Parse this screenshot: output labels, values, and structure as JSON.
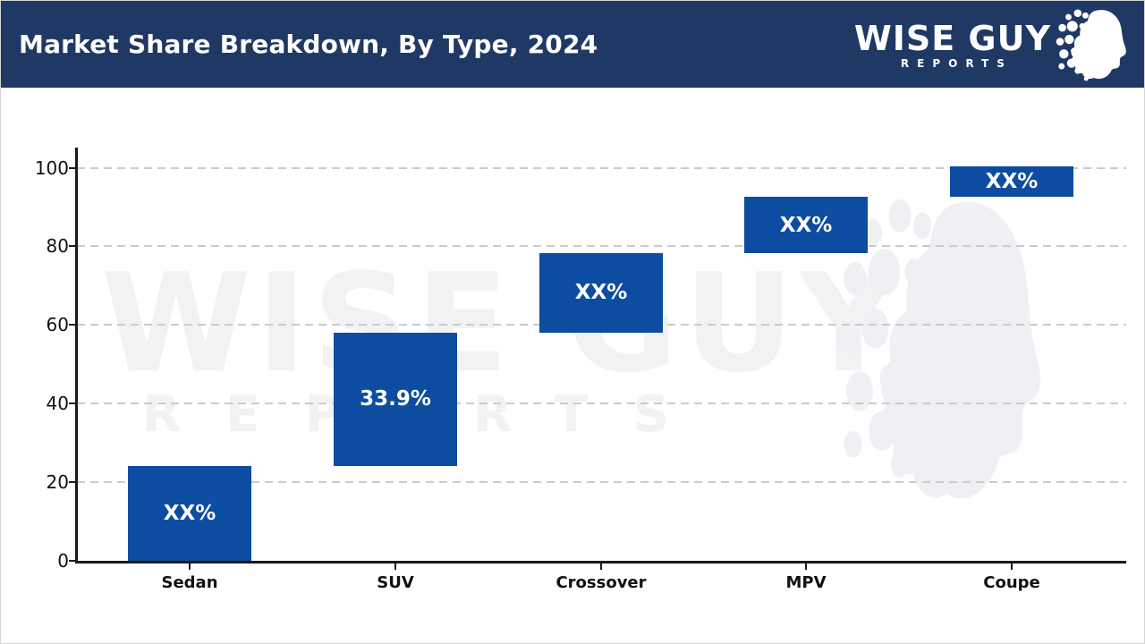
{
  "header": {
    "title": "Market Share Breakdown, By Type, 2024",
    "logo": {
      "line1": "WISE GUY",
      "line2": "REPORTS"
    }
  },
  "watermark": {
    "line1": "WISE GUY",
    "line2": "REPORTS"
  },
  "colors": {
    "header_bg": "#203864",
    "bar": "#0d4da1",
    "grid": "#cbcbcb",
    "axis": "#1a1a1a",
    "tick_label": "#111111",
    "bar_label": "#ffffff",
    "watermark": "#f2f2f4",
    "watermark_face": "#eef0f3"
  },
  "chart_data": {
    "type": "bar",
    "subtype": "floating-waterfall",
    "title": "Market Share Breakdown, By Type, 2024",
    "categories": [
      "Sedan",
      "SUV",
      "Crossover",
      "MPV",
      "Coupe"
    ],
    "segments": [
      {
        "category": "Sedan",
        "start": 0,
        "end": 24.2,
        "label": "XX%"
      },
      {
        "category": "SUV",
        "start": 24.2,
        "end": 58.1,
        "label": "33.9%"
      },
      {
        "category": "Crossover",
        "start": 58.1,
        "end": 78.3,
        "label": "XX%"
      },
      {
        "category": "MPV",
        "start": 78.3,
        "end": 92.6,
        "label": "XX%"
      },
      {
        "category": "Coupe",
        "start": 92.6,
        "end": 100.3,
        "label": "XX%"
      }
    ],
    "y_ticks": [
      0,
      20,
      40,
      60,
      80,
      100
    ],
    "ylim": [
      0,
      104.5
    ],
    "xlabel": "",
    "ylabel": "",
    "grid": "horizontal-dashed",
    "legend": "none"
  }
}
